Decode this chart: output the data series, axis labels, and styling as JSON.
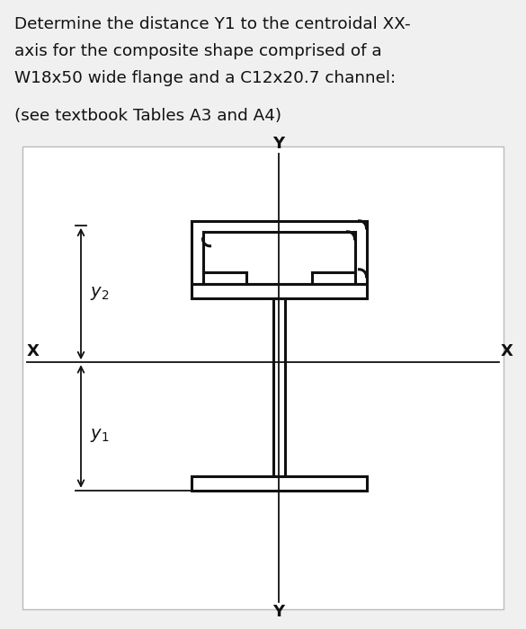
{
  "title_line1": "Determine the distance Y1 to the centroidal XX-",
  "title_line2": "axis for the composite shape comprised of a",
  "title_line3": "W18x50 wide flange and a C12x20.7 channel:",
  "subtitle": "(see textbook Tables A3 and A4)",
  "bg_color": "#f0f0f0",
  "box_bg": "#ffffff",
  "line_color": "#111111",
  "text_color": "#111111",
  "font_size_title": 13.2,
  "font_size_sub": 13.2,
  "font_size_label": 13
}
